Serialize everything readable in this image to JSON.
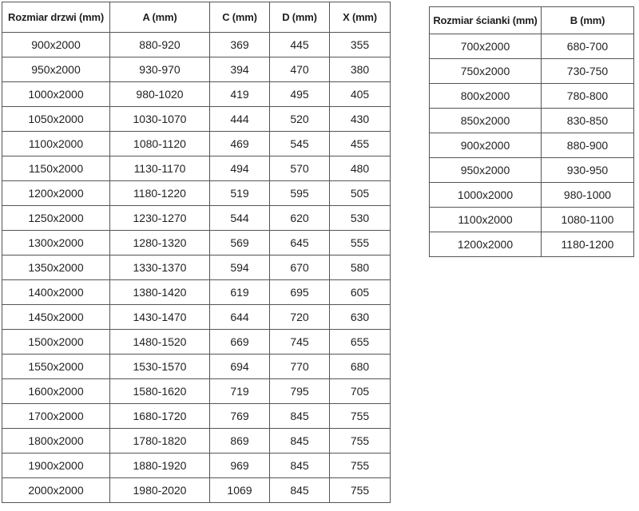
{
  "colors": {
    "background": "#ffffff",
    "text": "#1f1f1f",
    "table_border": "#555555"
  },
  "doors_table": {
    "headers": [
      "Rozmiar drzwi (mm)",
      "A (mm)",
      "C (mm)",
      "D (mm)",
      "X (mm)"
    ],
    "rows": [
      [
        "900x2000",
        "880-920",
        "369",
        "445",
        "355"
      ],
      [
        "950x2000",
        "930-970",
        "394",
        "470",
        "380"
      ],
      [
        "1000x2000",
        "980-1020",
        "419",
        "495",
        "405"
      ],
      [
        "1050x2000",
        "1030-1070",
        "444",
        "520",
        "430"
      ],
      [
        "1100x2000",
        "1080-1120",
        "469",
        "545",
        "455"
      ],
      [
        "1150x2000",
        "1130-1170",
        "494",
        "570",
        "480"
      ],
      [
        "1200x2000",
        "1180-1220",
        "519",
        "595",
        "505"
      ],
      [
        "1250x2000",
        "1230-1270",
        "544",
        "620",
        "530"
      ],
      [
        "1300x2000",
        "1280-1320",
        "569",
        "645",
        "555"
      ],
      [
        "1350x2000",
        "1330-1370",
        "594",
        "670",
        "580"
      ],
      [
        "1400x2000",
        "1380-1420",
        "619",
        "695",
        "605"
      ],
      [
        "1450x2000",
        "1430-1470",
        "644",
        "720",
        "630"
      ],
      [
        "1500x2000",
        "1480-1520",
        "669",
        "745",
        "655"
      ],
      [
        "1550x2000",
        "1530-1570",
        "694",
        "770",
        "680"
      ],
      [
        "1600x2000",
        "1580-1620",
        "719",
        "795",
        "705"
      ],
      [
        "1700x2000",
        "1680-1720",
        "769",
        "845",
        "755"
      ],
      [
        "1800x2000",
        "1780-1820",
        "869",
        "845",
        "755"
      ],
      [
        "1900x2000",
        "1880-1920",
        "969",
        "845",
        "755"
      ],
      [
        "2000x2000",
        "1980-2020",
        "1069",
        "845",
        "755"
      ]
    ]
  },
  "walls_table": {
    "headers": [
      "Rozmiar ścianki (mm)",
      "B (mm)"
    ],
    "rows": [
      [
        "700x2000",
        "680-700"
      ],
      [
        "750x2000",
        "730-750"
      ],
      [
        "800x2000",
        "780-800"
      ],
      [
        "850x2000",
        "830-850"
      ],
      [
        "900x2000",
        "880-900"
      ],
      [
        "950x2000",
        "930-950"
      ],
      [
        "1000x2000",
        "980-1000"
      ],
      [
        "1100x2000",
        "1080-1100"
      ],
      [
        "1200x2000",
        "1180-1200"
      ]
    ]
  }
}
